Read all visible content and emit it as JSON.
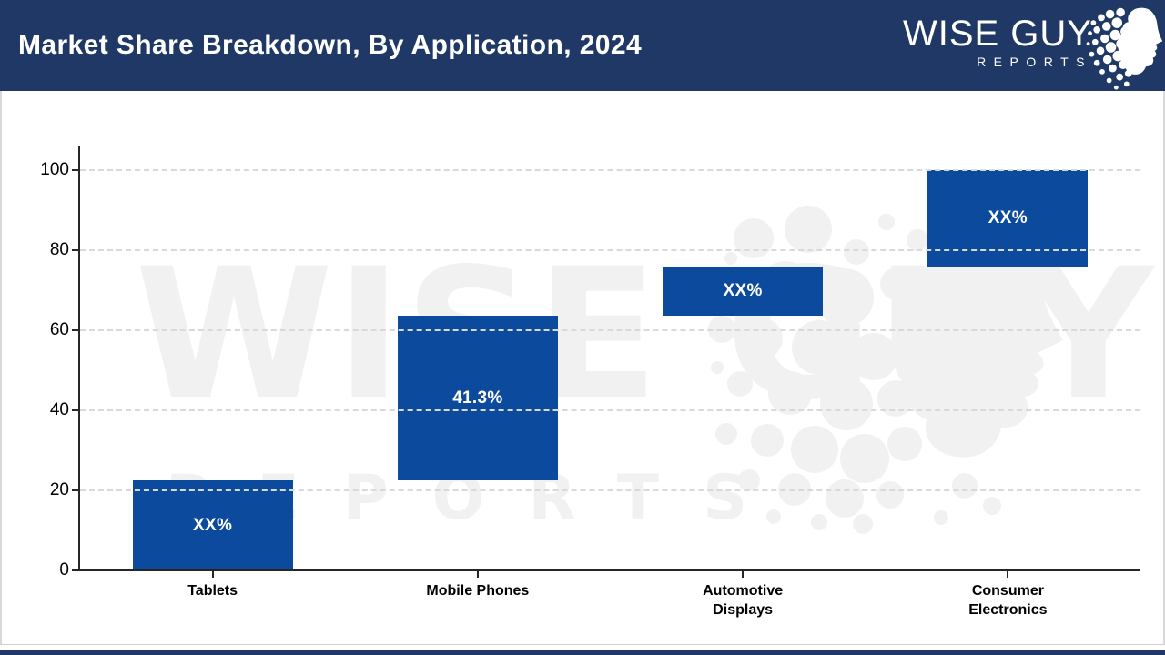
{
  "header": {
    "title": "Market Share Breakdown, By Application, 2024",
    "logo": {
      "wordmark": "WISE GUY",
      "subtitle": "REPORTS"
    }
  },
  "watermark": {
    "wordmark": "WISE GUY",
    "subtitle": "REPORTS"
  },
  "colors": {
    "header_bg": "#203865",
    "footer_bg": "#203865",
    "bar": "#0C4A9E",
    "bar_label": "#FFFFFF",
    "grid": "#D9D9D9",
    "axis": "#262626",
    "tick_text": "#000000",
    "watermark": "#F1F1F1"
  },
  "chart_data": {
    "type": "bar",
    "subtype": "waterfall",
    "title": "Market Share Breakdown, By Application, 2024",
    "categories": [
      "Tablets",
      "Mobile Phones",
      "Automotive\nDisplays",
      "Consumer\nElectronics"
    ],
    "segments": [
      {
        "category": "Tablets",
        "label": "XX%",
        "start": 0,
        "end": 22.4
      },
      {
        "category": "Mobile Phones",
        "label": "41.3%",
        "start": 22.4,
        "end": 63.7
      },
      {
        "category": "Automotive Displays",
        "label": "XX%",
        "start": 63.7,
        "end": 75.9
      },
      {
        "category": "Consumer Electronics",
        "label": "XX%",
        "start": 75.9,
        "end": 100
      }
    ],
    "bar_labels": [
      "XX%",
      "41.3%",
      "XX%",
      "XX%"
    ],
    "shown_value": {
      "Mobile Phones": 41.3
    },
    "ylim": [
      0,
      100
    ],
    "yticks": [
      0,
      20,
      40,
      60,
      80,
      100
    ],
    "xlabel": "",
    "ylabel": "",
    "grid": "horizontal-dashed",
    "legend": "none"
  }
}
